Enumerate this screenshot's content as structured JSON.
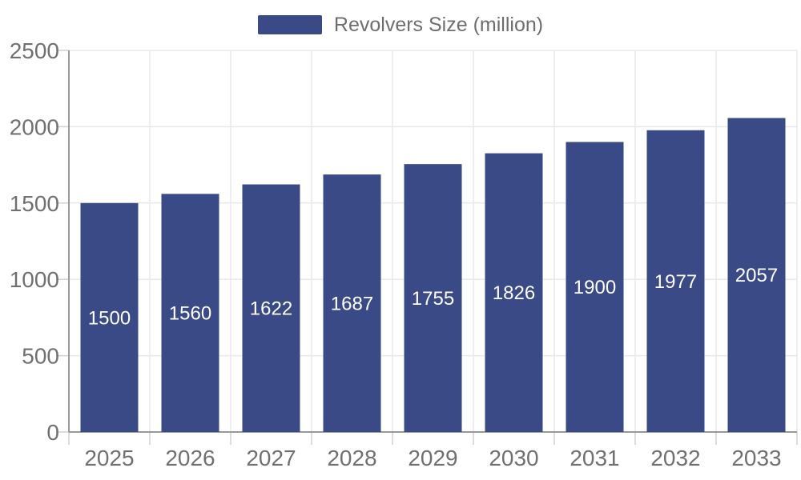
{
  "colors": {
    "bar": "#3A4A87",
    "grid": "#E8E8E9",
    "axis_line": "#999999",
    "tick": "#D0D0D0",
    "axis_text": "#707070",
    "legend_text": "#6E6E6E",
    "value_text": "#FFFFFF",
    "background": "#FFFFFF"
  },
  "chart_data": {
    "type": "bar",
    "categories": [
      "2025",
      "2026",
      "2027",
      "2028",
      "2029",
      "2030",
      "2031",
      "2032",
      "2033"
    ],
    "series": [
      {
        "name": "Revolvers Size (million)",
        "values": [
          1500,
          1560,
          1622,
          1687,
          1755,
          1826,
          1900,
          1977,
          2057
        ]
      }
    ],
    "xlabel": "",
    "ylabel": "",
    "ylim": [
      0,
      2500
    ],
    "yticks": [
      0,
      500,
      1000,
      1500,
      2000,
      2500
    ],
    "grid": true,
    "legend_position": "top-center",
    "value_labels": "inside-center"
  }
}
